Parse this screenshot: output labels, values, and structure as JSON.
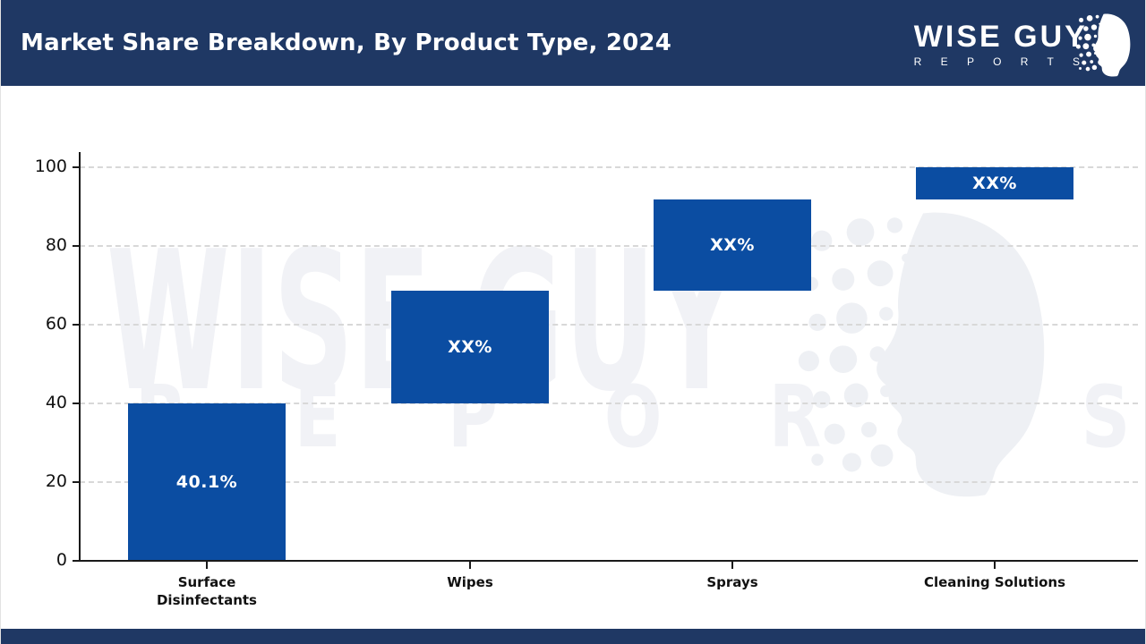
{
  "header": {
    "title": "Market Share Breakdown, By Product Type, 2024",
    "logo": {
      "name": "WISE GUY",
      "sub": "R E P O R T S"
    }
  },
  "watermark": {
    "line1": "WISE GUY",
    "line2": "R E P O R T S"
  },
  "footer": {},
  "chart_data": {
    "type": "bar",
    "subtype": "waterfall",
    "title": "Market Share Breakdown, By Product Type, 2024",
    "categories": [
      "Surface\nDisinfectants",
      "Wipes",
      "Sprays",
      "Cleaning Solutions"
    ],
    "segments": [
      {
        "category": "Surface Disinfectants",
        "start": 0,
        "end": 40.1,
        "label": "40.1%"
      },
      {
        "category": "Wipes",
        "start": 40.1,
        "end": 68.6,
        "label": "XX%"
      },
      {
        "category": "Sprays",
        "start": 68.6,
        "end": 91.8,
        "label": "XX%"
      },
      {
        "category": "Cleaning Solutions",
        "start": 91.8,
        "end": 100,
        "label": "XX%"
      }
    ],
    "yticks": [
      0,
      20,
      40,
      60,
      80,
      100
    ],
    "ylim": [
      0,
      105
    ],
    "xlabel": "",
    "ylabel": "",
    "grid": "horizontal-dashed",
    "legend_position": "none",
    "bar_color": "#0B4DA2"
  },
  "colors": {
    "header_bg": "#1F3864",
    "footer_bg": "#1F3864",
    "bar": "#0B4DA2",
    "grid": "#D8D8D8",
    "axis": "#1A1A1A",
    "watermark": "#F1F2F6"
  }
}
